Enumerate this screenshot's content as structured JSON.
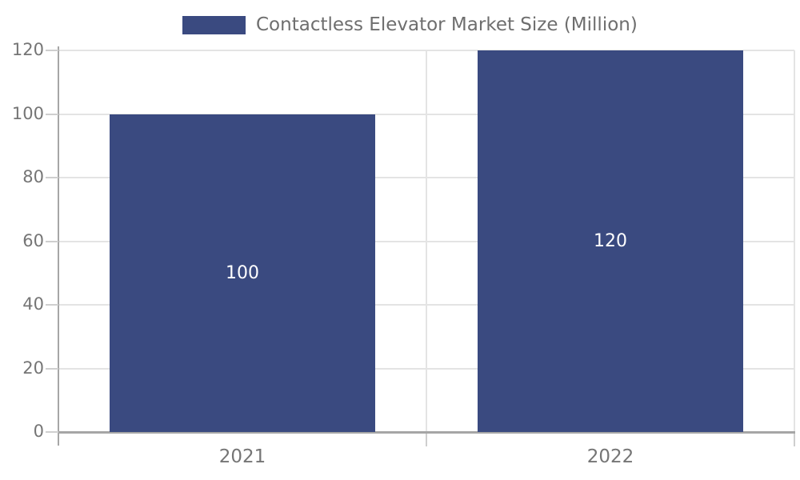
{
  "legend": {
    "label": "Contactless Elevator Market Size (Million)"
  },
  "chart_data": {
    "type": "bar",
    "categories": [
      "2021",
      "2022"
    ],
    "values": [
      100,
      120
    ],
    "value_labels": [
      "100",
      "120"
    ],
    "series": [
      {
        "name": "Contactless Elevator Market Size (Million)",
        "values": [
          100,
          120
        ]
      }
    ],
    "title": "",
    "xlabel": "",
    "ylabel": "",
    "ylim": [
      0,
      120
    ],
    "yticks": [
      0,
      20,
      40,
      60,
      80,
      100,
      120
    ],
    "grid": true,
    "legend_position": "top",
    "legend_entries": [
      "Contactless Elevator Market Size (Million)"
    ],
    "bar_width_fraction": 0.72
  },
  "colors": {
    "bar": "#3a4a80",
    "value_label": "#ffffff",
    "axis_line": "#a6a6a6",
    "grid_line": "#e4e4e4",
    "tick_mark": "#cfcfcf",
    "tick_label": "#757575",
    "legend_text": "#6e6e6e",
    "background": "#ffffff"
  }
}
